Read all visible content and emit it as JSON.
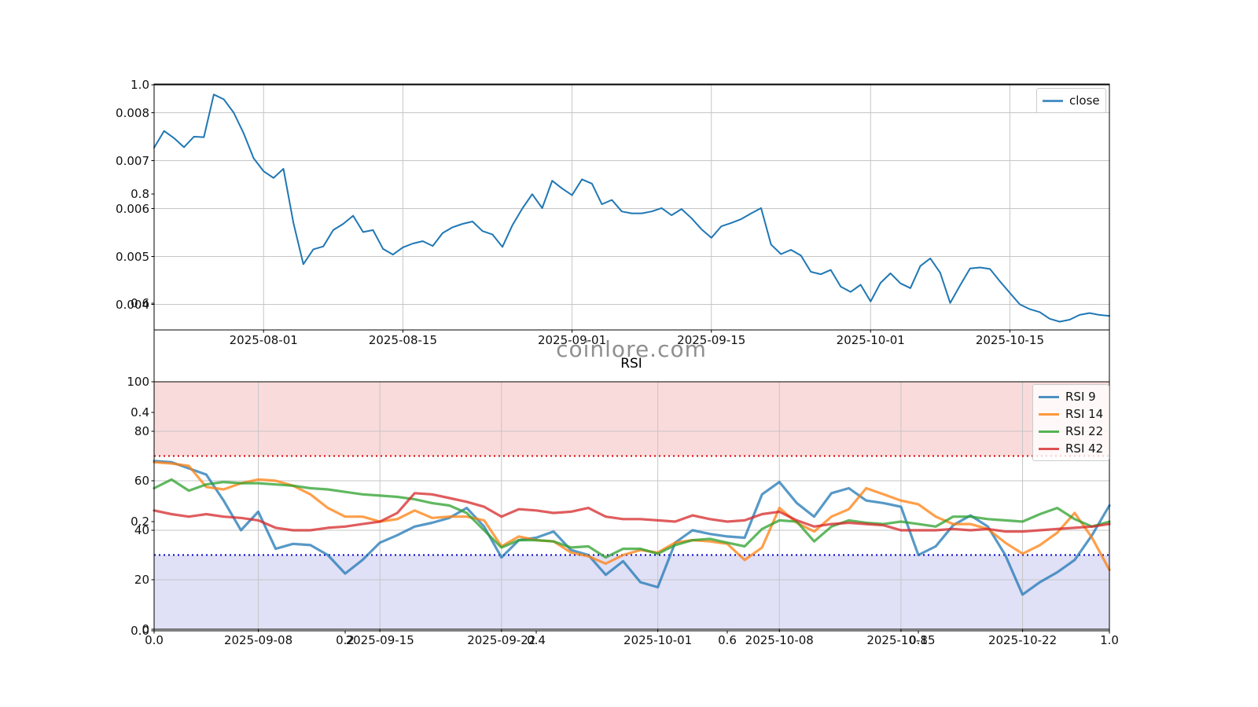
{
  "figure": {
    "watermark": "coinlore.com"
  },
  "chart_data": [
    {
      "type": "line",
      "title": "",
      "legend_position": "upper right",
      "x_start_date": "2025-07-21",
      "x_end_date": "2025-10-25",
      "x_freq": "daily",
      "x_tick_labels": [
        "2025-08-01",
        "2025-08-15",
        "2025-09-01",
        "2025-09-15",
        "2025-10-01",
        "2025-10-15"
      ],
      "y_tick_labels": [
        "0.008",
        "0.007",
        "0.006",
        "0.005",
        "0.004"
      ],
      "secondary_y_tick_labels": [
        "1.0",
        "0.8",
        "0.6",
        "0.4",
        "0.2",
        "0.0"
      ],
      "ylim": [
        0.00347,
        0.0086
      ],
      "grid": true,
      "series": [
        {
          "name": "close",
          "color": "#1f77b4",
          "values": [
            0.00727,
            0.00762,
            0.00747,
            0.00728,
            0.0075,
            0.00749,
            0.00838,
            0.00828,
            0.008,
            0.00757,
            0.00705,
            0.00678,
            0.00664,
            0.00683,
            0.0057,
            0.00484,
            0.00515,
            0.00521,
            0.00555,
            0.00568,
            0.00585,
            0.00551,
            0.00555,
            0.00516,
            0.00504,
            0.00519,
            0.00527,
            0.00532,
            0.00522,
            0.00549,
            0.00561,
            0.00568,
            0.00573,
            0.00553,
            0.00546,
            0.0052,
            0.00565,
            0.006,
            0.0063,
            0.00601,
            0.00658,
            0.00642,
            0.00628,
            0.00661,
            0.00652,
            0.00609,
            0.00618,
            0.00594,
            0.0059,
            0.0059,
            0.00594,
            0.00601,
            0.00586,
            0.00599,
            0.0058,
            0.00557,
            0.00539,
            0.00563,
            0.0057,
            0.00578,
            0.0059,
            0.00601,
            0.00525,
            0.00505,
            0.00514,
            0.00502,
            0.00468,
            0.00463,
            0.00472,
            0.00437,
            0.00426,
            0.00441,
            0.00406,
            0.00445,
            0.00465,
            0.00444,
            0.00434,
            0.0048,
            0.00496,
            0.00466,
            0.00403,
            0.0044,
            0.00475,
            0.00477,
            0.00474,
            0.00448,
            0.00424,
            0.004,
            0.0039,
            0.00384,
            0.0037,
            0.00364,
            0.00368,
            0.00378,
            0.00382,
            0.00378,
            0.00376
          ]
        }
      ]
    },
    {
      "type": "line",
      "title": "RSI",
      "legend_position": "upper right",
      "x_start_date": "2025-09-02",
      "x_end_date": "2025-10-27",
      "x_freq": "daily",
      "x_tick_labels": [
        "2025-09-08",
        "2025-09-15",
        "2025-09-22",
        "2025-10-01",
        "2025-10-08",
        "2025-10-15",
        "2025-10-22"
      ],
      "secondary_x_tick_labels": [
        "0.0",
        "0.2",
        "0.4",
        "0.6",
        "0.8",
        "1.0"
      ],
      "y_tick_labels": [
        "0",
        "20",
        "40",
        "60",
        "80",
        "100"
      ],
      "ylim": [
        0,
        100
      ],
      "grid": true,
      "overbought_level": 70,
      "oversold_level": 30,
      "overbought_band_color": "#fadbdb",
      "oversold_band_color": "#e0e0f6",
      "overbought_line_color": "#dd0000",
      "oversold_line_color": "#0000cc",
      "series": [
        {
          "name": "RSI 9",
          "color": "#1f77b4",
          "values": [
            68,
            67.5,
            65,
            62.5,
            52,
            40,
            47.5,
            32.5,
            34.5,
            34,
            30,
            22.5,
            28,
            35,
            38,
            41.5,
            43,
            45,
            49,
            41.5,
            29,
            36,
            37,
            39.5,
            32,
            30,
            22,
            27.5,
            19,
            17,
            35,
            40,
            38.5,
            37.5,
            37,
            54.5,
            59.5,
            51,
            45.5,
            55,
            57,
            52,
            51,
            49.5,
            30,
            33.5,
            42,
            46,
            41.5,
            30,
            14,
            19,
            23,
            28,
            38,
            50
          ]
        },
        {
          "name": "RSI 14",
          "color": "#ff7f0e",
          "values": [
            67.5,
            67,
            66,
            57.5,
            56.5,
            59,
            60.5,
            60,
            58,
            54.5,
            49,
            45.5,
            45.5,
            43.5,
            44.5,
            48,
            45,
            45.5,
            45.5,
            44,
            33.5,
            37.5,
            36,
            35.5,
            31,
            29.5,
            26.5,
            30,
            32,
            31,
            35,
            36,
            35.5,
            34.5,
            28,
            33,
            49,
            43,
            39.5,
            45.5,
            48.5,
            57,
            54.5,
            52,
            50.5,
            45.5,
            42.5,
            42.5,
            40.5,
            35,
            30.5,
            34,
            39,
            47,
            37,
            24
          ]
        },
        {
          "name": "RSI 22",
          "color": "#2ca02c",
          "values": [
            57,
            60.5,
            56,
            58.5,
            59.5,
            59,
            59,
            58.5,
            58,
            57,
            56.5,
            55.5,
            54.5,
            54,
            53.5,
            52.5,
            51,
            50,
            47,
            40,
            33,
            36,
            36,
            35.5,
            33,
            33.5,
            29,
            32.5,
            32.5,
            30.5,
            34,
            36,
            36.5,
            35,
            33.5,
            40.5,
            44,
            43.5,
            35.5,
            41.5,
            44,
            43,
            42.5,
            43.5,
            42.5,
            41.5,
            45.5,
            45.5,
            44.5,
            44,
            43.5,
            46.5,
            49,
            44.5,
            41.5,
            43.5
          ]
        },
        {
          "name": "RSI 42",
          "color": "#d62728",
          "values": [
            48,
            46.5,
            45.5,
            46.5,
            45.5,
            45,
            44,
            41,
            40,
            40,
            41,
            41.5,
            42.5,
            43.5,
            47,
            55,
            54.5,
            53,
            51.5,
            49.5,
            45.5,
            48.5,
            48,
            47,
            47.5,
            49,
            45.5,
            44.5,
            44.5,
            44,
            43.5,
            46,
            44.5,
            43.5,
            44,
            46.5,
            47.5,
            44,
            41.5,
            42.5,
            43,
            42.5,
            42,
            40,
            40,
            40,
            40.5,
            40,
            40.5,
            39.5,
            39.5,
            40,
            40.5,
            41,
            41.5,
            42.5
          ]
        }
      ]
    }
  ]
}
